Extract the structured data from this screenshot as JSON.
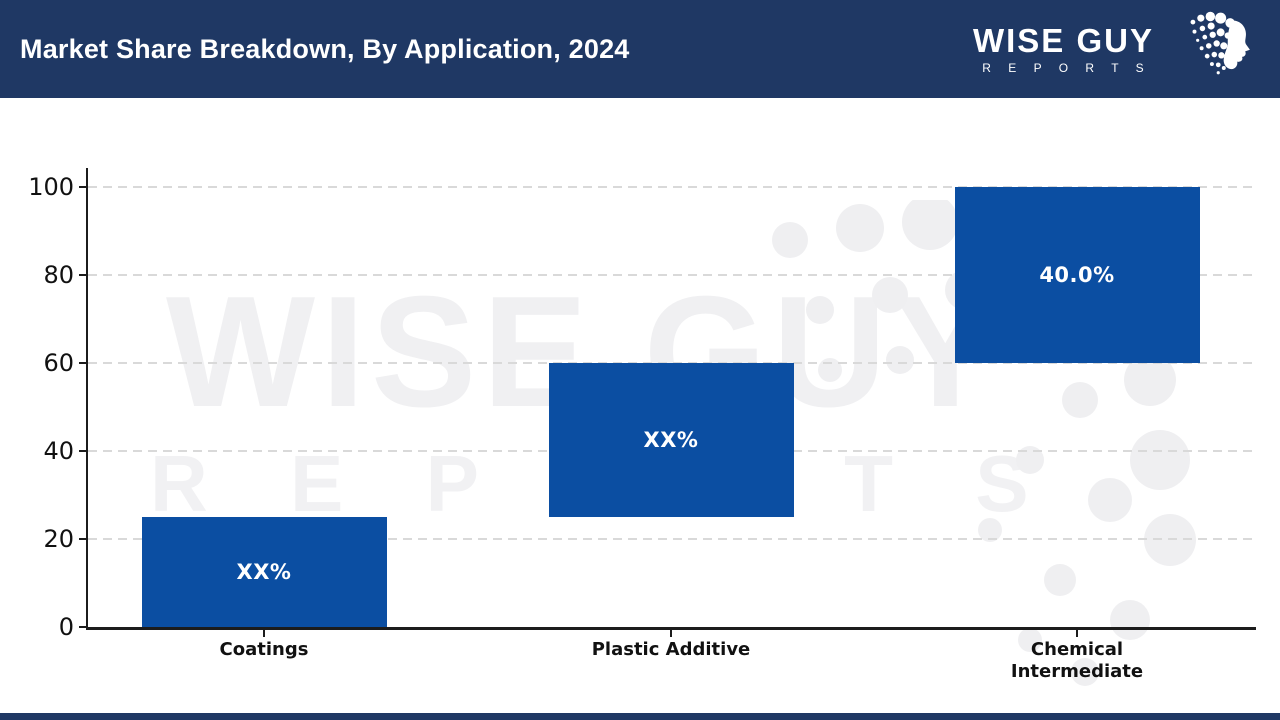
{
  "header": {
    "title": "Market Share Breakdown, By Application, 2024",
    "logo": {
      "line1": "WISE GUY",
      "line2": "R E P O R T S"
    }
  },
  "watermark": {
    "line1": "WISE GUY",
    "line2": "R E P O R T S"
  },
  "chart_data": {
    "type": "bar",
    "subtype": "floating-segment-waterfall",
    "title": "Market Share Breakdown, By Application, 2024",
    "categories": [
      "Coatings",
      "Plastic Additive",
      "Chemical Intermediate"
    ],
    "bars": [
      {
        "category": "Coatings",
        "start": 0,
        "end": 25,
        "value_label": "XX%"
      },
      {
        "category": "Plastic Additive",
        "start": 25,
        "end": 60,
        "value_label": "XX%"
      },
      {
        "category": "Chemical Intermediate",
        "start": 60,
        "end": 100,
        "value_label": "40.0%"
      }
    ],
    "xlabel": "",
    "ylabel": "",
    "ylim": [
      0,
      100
    ],
    "yticks": [
      0,
      20,
      40,
      60,
      80,
      100
    ],
    "grid": true,
    "grid_style": "dashed",
    "legend": "none"
  },
  "colors": {
    "header_bg": "#1F3864",
    "bar": "#0B4EA2",
    "grid": "#D9D9D9",
    "axis": "#1C1C1C",
    "bar_label": "#FFFFFF",
    "watermark": "#F0F0F2"
  }
}
